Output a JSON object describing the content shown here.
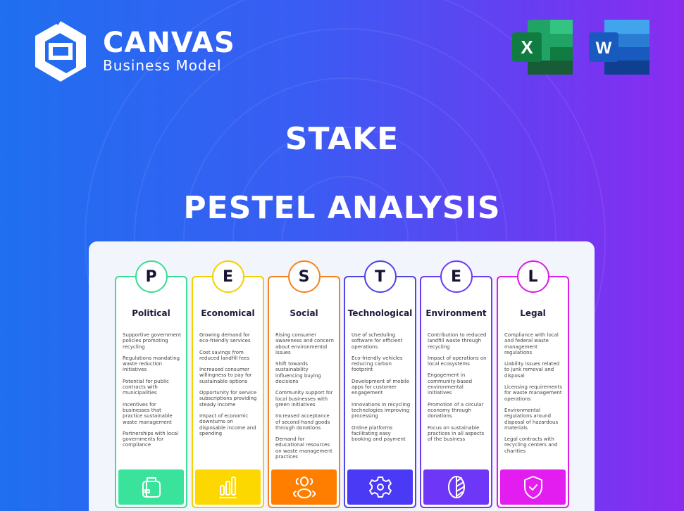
{
  "brand": {
    "name": "CANVAS",
    "tagline": "Business Model"
  },
  "apps": [
    {
      "name": "excel-icon",
      "letter": "X",
      "color": "#1f7a45"
    },
    {
      "name": "word-icon",
      "letter": "W",
      "color": "#2b5bbd"
    }
  ],
  "title": "STAKE",
  "subtitle": "PESTEL ANALYSIS",
  "columns": [
    {
      "letter": "P",
      "title": "Political",
      "color": "#3ddc97",
      "fill": "#3ae39b",
      "icon": "briefcase-icon",
      "items": [
        "Supportive government policies promoting recycling",
        "Regulations mandating waste reduction initiatives",
        "Potential for public contracts with municipalities",
        "Incentives for businesses that practice sustainable waste management",
        "Partnerships with local governments for compliance"
      ]
    },
    {
      "letter": "E",
      "title": "Economical",
      "color": "#f5d000",
      "fill": "#fcd700",
      "icon": "bar-chart-icon",
      "items": [
        "Growing demand for eco-friendly services",
        "Cost savings from reduced landfill fees",
        "Increased consumer willingness to pay for sustainable options",
        "Opportunity for service subscriptions providing steady income",
        "Impact of economic downturns on disposable income and spending"
      ]
    },
    {
      "letter": "S",
      "title": "Social",
      "color": "#f5841f",
      "fill": "#ff7e00",
      "icon": "people-icon",
      "items": [
        "Rising consumer awareness and concern about environmental issues",
        "Shift towards sustainability influencing buying decisions",
        "Community support for local businesses with green initiatives",
        "Increased acceptance of second-hand goods through donations",
        "Demand for educational resources on waste management practices"
      ]
    },
    {
      "letter": "T",
      "title": "Technological",
      "color": "#4f46e5",
      "fill": "#4a3af5",
      "icon": "gear-icon",
      "items": [
        "Use of scheduling software for efficient operations",
        "Eco-friendly vehicles reducing carbon footprint",
        "Development of mobile apps for customer engagement",
        "Innovations in recycling technologies improving processing",
        "Online platforms facilitating easy booking and payment"
      ]
    },
    {
      "letter": "E",
      "title": "Environment",
      "color": "#6d3cf5",
      "fill": "#6e36f7",
      "icon": "leaf-icon",
      "items": [
        "Contribution to reduced landfill waste through recycling",
        "Impact of operations on local ecosystems",
        "Engagement in community-based environmental initiatives",
        "Promotion of a circular economy through donations",
        "Focus on sustainable practices in all aspects of the business"
      ]
    },
    {
      "letter": "L",
      "title": "Legal",
      "color": "#d91ee8",
      "fill": "#e31cf0",
      "icon": "shield-check-icon",
      "items": [
        "Compliance with local and federal waste management regulations",
        "Liability issues related to junk removal and disposal",
        "Licensing requirements for waste management operations",
        "Environmental regulations around disposal of hazardous materials",
        "Legal contracts with recycling centers and charities"
      ]
    }
  ]
}
